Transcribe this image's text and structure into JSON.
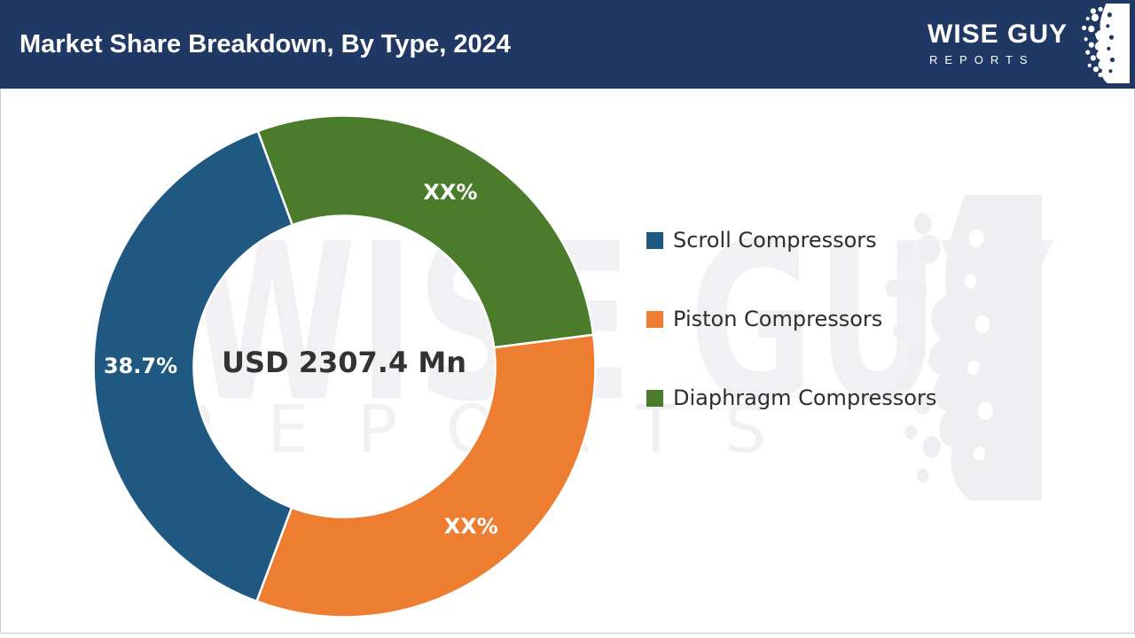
{
  "colors": {
    "header_bg": "#1F3864",
    "accent_blue": "#1F5880",
    "accent_orange": "#ED7D31",
    "accent_green": "#4A7C2C",
    "text_dark": "#2d2d2d",
    "watermark": "#F1F1F4",
    "border": "#CBCBCB"
  },
  "header": {
    "title": "Market Share Breakdown, By Type, 2024",
    "logo_line1": "WISE GUY",
    "logo_line2": "REPORTS"
  },
  "watermark": {
    "line1": "WISE GUY",
    "line2": "REPORTS"
  },
  "chart_data": {
    "type": "donut",
    "title": "Market Share Breakdown, By Type, 2024",
    "center_label": "USD 2307.4 Mn",
    "start_angle_deg": 110.2,
    "donut_hole_ratio": 0.6,
    "legend_position": "right",
    "segments": [
      {
        "label": "Scroll Compressors",
        "value_pct": 38.7,
        "display_label": "38.7%",
        "color": "#1F5880"
      },
      {
        "label": "Piston Compressors",
        "value_pct": 32.7,
        "display_label": "XX%",
        "color": "#ED7D31"
      },
      {
        "label": "Diaphragm Compressors",
        "value_pct": 28.6,
        "display_label": "XX%",
        "color": "#4A7C2C"
      }
    ]
  },
  "legend": {
    "items": [
      {
        "label": "Scroll Compressors",
        "color": "#1F5880"
      },
      {
        "label": "Piston Compressors",
        "color": "#ED7D31"
      },
      {
        "label": "Diaphragm Compressors",
        "color": "#4A7C2C"
      }
    ]
  }
}
